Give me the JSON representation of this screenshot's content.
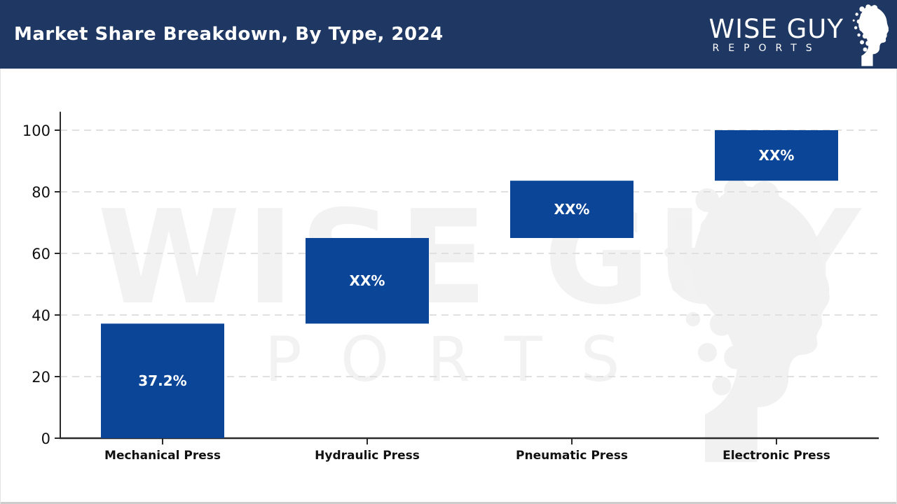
{
  "header": {
    "title": "Market Share Breakdown, By Type, 2024"
  },
  "logo": {
    "line1": "WISE GUY",
    "line2": "REPORTS"
  },
  "watermark": {
    "line1": "WISE GUY",
    "line2": "REPORTS"
  },
  "colors": {
    "header_bg": "#1f3763",
    "bar": "#0b4597",
    "bar_label": "#ffffff",
    "axis": "#2b2b2b",
    "grid": "#e0e0e0",
    "tick_label": "#111111",
    "category_label": "#111111",
    "watermark": "#f2f2f2",
    "bottom_line": "#cccccc"
  },
  "chart_data": {
    "type": "bar",
    "subtype": "floating stacked segments (waterfall-style market share)",
    "title": "Market Share Breakdown, By Type, 2024",
    "categories": [
      "Mechanical Press",
      "Hydraulic Press",
      "Pneumatic Press",
      "Electronic Press"
    ],
    "segments": [
      {
        "category": "Mechanical Press",
        "label": "37.2%",
        "start": 0,
        "end": 37.2
      },
      {
        "category": "Hydraulic Press",
        "label": "XX%",
        "start": 37.2,
        "end": 65
      },
      {
        "category": "Pneumatic Press",
        "label": "XX%",
        "start": 65,
        "end": 83.6
      },
      {
        "category": "Electronic Press",
        "label": "XX%",
        "start": 83.6,
        "end": 100
      }
    ],
    "yticks": [
      0,
      20,
      40,
      60,
      80,
      100
    ],
    "ylim": [
      0,
      106
    ],
    "xlabel": "",
    "ylabel": "",
    "grid": "horizontal dashed",
    "legend": "none"
  }
}
